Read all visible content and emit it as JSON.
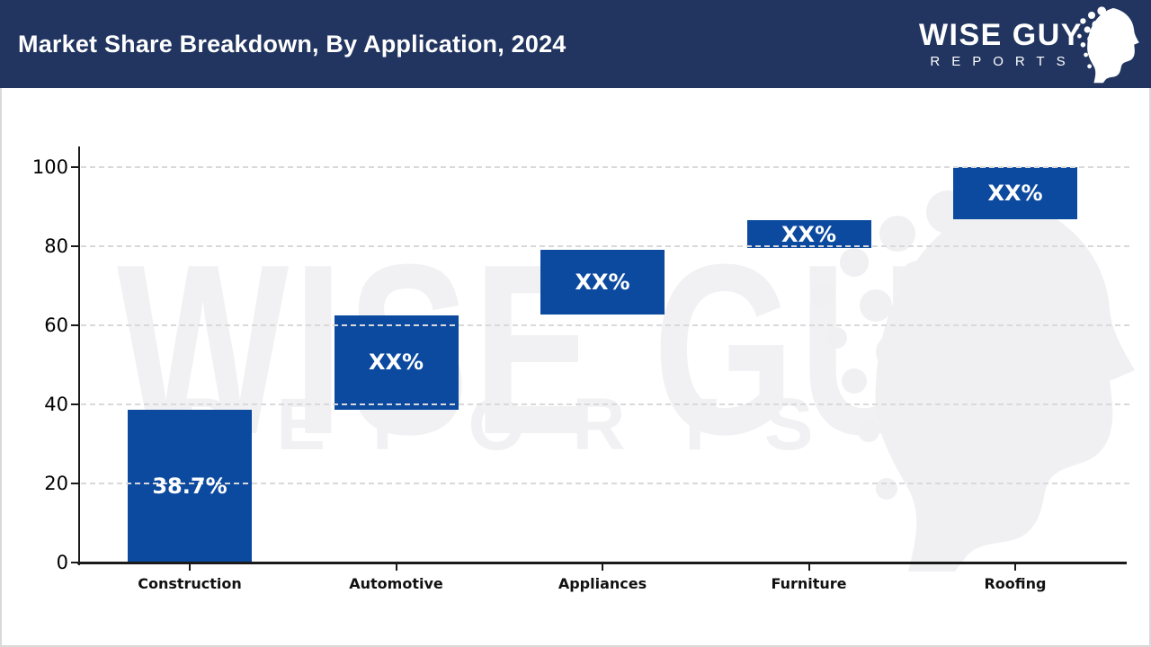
{
  "header": {
    "title": "Market Share Breakdown, By Application, 2024",
    "logo": {
      "wordmark": "WISE GUY",
      "subtitle": "REPORTS"
    }
  },
  "watermark": {
    "line1": "WISE GUY",
    "line2": "REPORTS"
  },
  "colors": {
    "header_background": "#213560",
    "bar_blue": "#0c4aa0",
    "gridline": "#d9d9d9",
    "axis": "#1a1a1a",
    "watermark": "#f1f1f4"
  },
  "chart_data": {
    "type": "bar",
    "subtype": "waterfall",
    "title": "Market Share Breakdown, By Application, 2024",
    "categories": [
      "Construction",
      "Automotive",
      "Appliances",
      "Furniture",
      "Roofing"
    ],
    "segments": [
      {
        "category": "Construction",
        "start": 0,
        "end": 38.7,
        "label": "38.7%"
      },
      {
        "category": "Automotive",
        "start": 38.7,
        "end": 62.5,
        "label": "XX%"
      },
      {
        "category": "Appliances",
        "start": 62.7,
        "end": 79.2,
        "label": "XX%"
      },
      {
        "category": "Furniture",
        "start": 79.5,
        "end": 86.6,
        "label": "XX%"
      },
      {
        "category": "Roofing",
        "start": 86.8,
        "end": 100,
        "label": "XX%"
      }
    ],
    "y_ticks": [
      0,
      20,
      40,
      60,
      80,
      100
    ],
    "ylim": [
      0,
      105
    ],
    "xlabel": "",
    "ylabel": "",
    "grid": "horizontal-dashed",
    "legend": "none",
    "bar_color": "#0c4aa0",
    "bar_label_color": "#ffffff"
  }
}
